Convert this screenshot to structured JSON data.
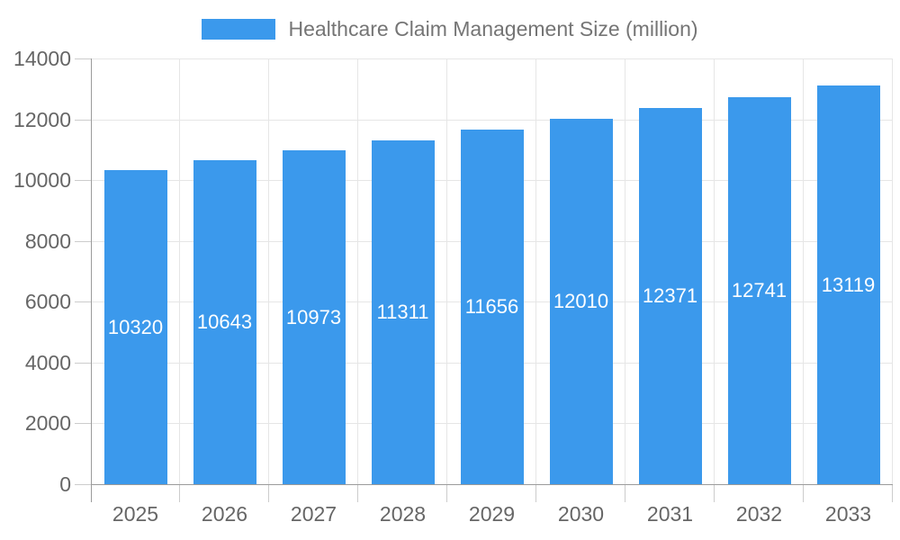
{
  "chart_data": {
    "type": "bar",
    "title": "",
    "legend_label": "Healthcare Claim Management Size (million)",
    "legend_position": "top",
    "categories": [
      "2025",
      "2026",
      "2027",
      "2028",
      "2029",
      "2030",
      "2031",
      "2032",
      "2033"
    ],
    "series": [
      {
        "name": "Healthcare Claim Management Size (million)",
        "values": [
          10320,
          10643,
          10973,
          11311,
          11656,
          12010,
          12371,
          12741,
          13119
        ]
      }
    ],
    "xlabel": "",
    "ylabel": "",
    "ylim": [
      0,
      14000
    ],
    "ytick_step": 2000,
    "yticks": [
      0,
      2000,
      4000,
      6000,
      8000,
      10000,
      12000,
      14000
    ],
    "grid": "horizontal and vertical gridlines on",
    "show_value_labels": true,
    "value_label_position": "center of bar",
    "colors": {
      "bar": "#3B99EC",
      "value_label": "#ffffff",
      "axis_line": "#9b9b9b",
      "tick": "#cccccc",
      "gridline": "#e6e6e6",
      "axis_text": "#666666",
      "legend_text": "#757575",
      "background": "#ffffff"
    }
  }
}
